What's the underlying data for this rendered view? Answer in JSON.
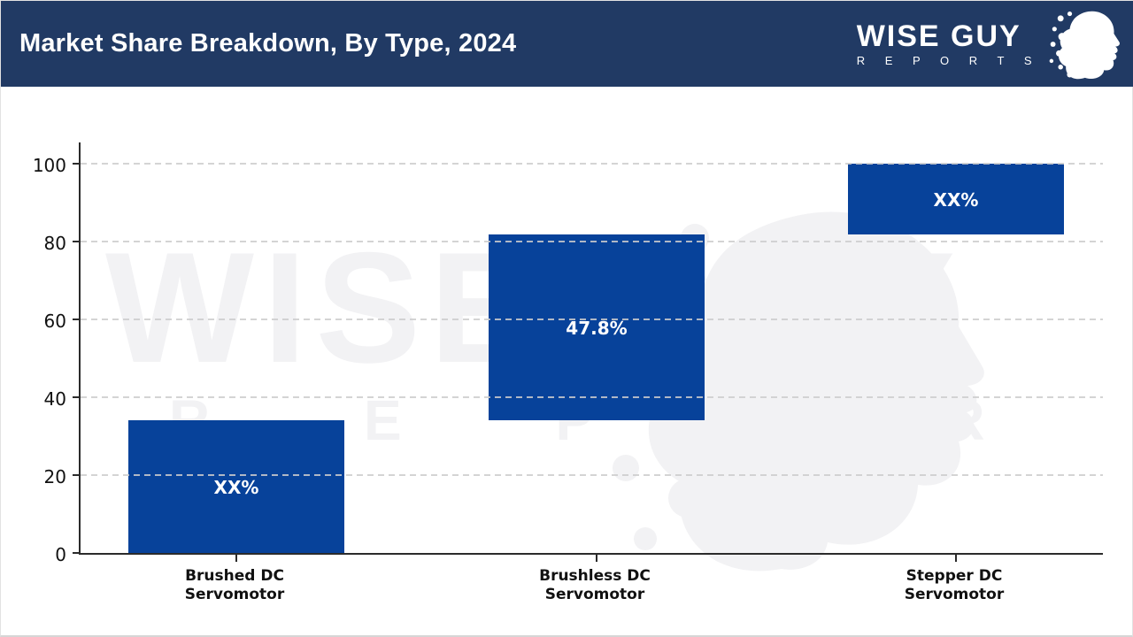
{
  "header": {
    "title": "Market Share Breakdown, By Type, 2024",
    "bg_color": "#213A64",
    "logo": {
      "line1": "WISE GUY",
      "line2": "R E P O R T S"
    }
  },
  "watermark": {
    "line1": "WISE GUY",
    "line2": "R E P O R T S"
  },
  "icons": {
    "header_face": "face-profile-dots-icon",
    "watermark_face": "face-profile-dots-icon"
  },
  "chart_data": {
    "type": "bar",
    "subtype": "waterfall",
    "title": "Market Share Breakdown, By Type, 2024",
    "categories": [
      "Brushed DC\nServomotor",
      "Brushless DC\nServomotor",
      "Stepper DC\nServomotor"
    ],
    "segments": [
      {
        "label": "XX%",
        "start": 0,
        "end": 34.0
      },
      {
        "label": "47.8%",
        "start": 34.0,
        "end": 81.8
      },
      {
        "label": "XX%",
        "start": 81.8,
        "end": 100
      }
    ],
    "yticks": [
      0,
      20,
      40,
      60,
      80,
      100
    ],
    "ylim": [
      0,
      100
    ],
    "xlabel": "",
    "ylabel": "",
    "bar_color": "#07429A",
    "grid": "horizontal-dashed",
    "grid_color": "#d2d2d2",
    "axis_color": "#2b2b2b",
    "legend": "none"
  }
}
